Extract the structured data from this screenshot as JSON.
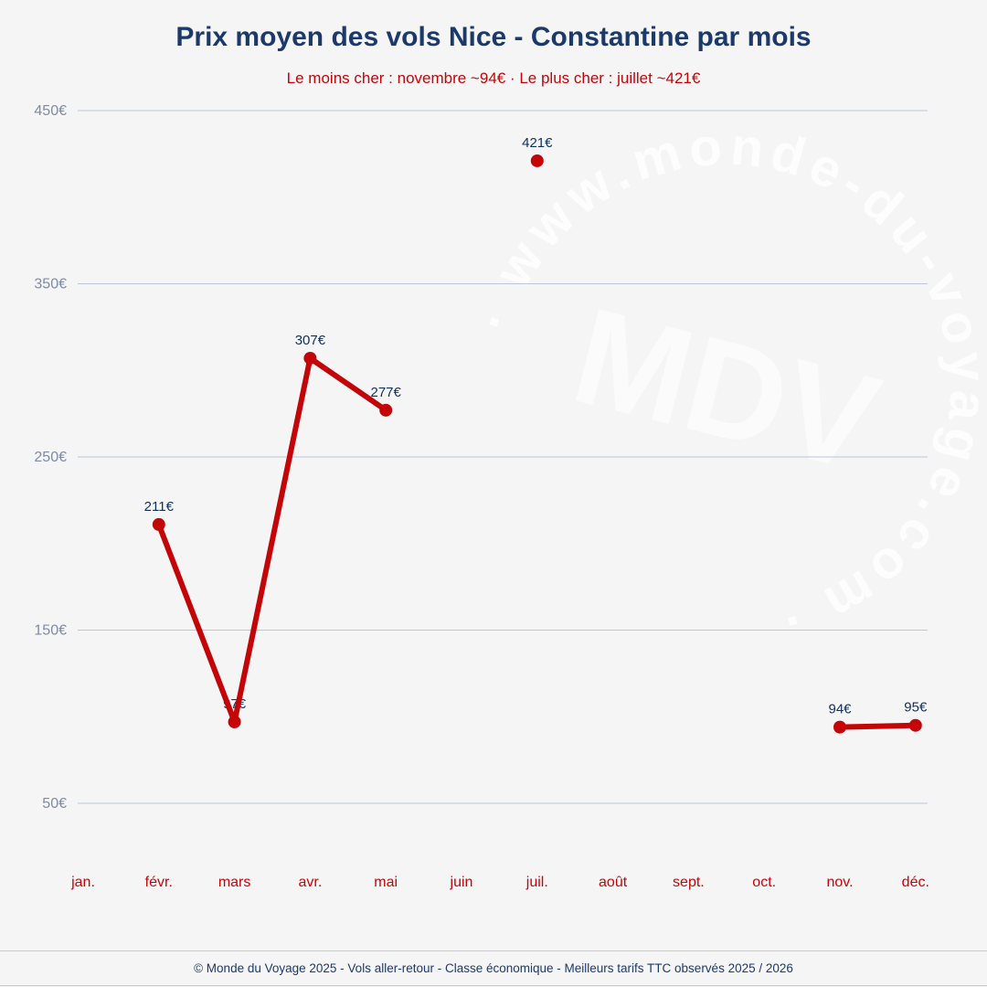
{
  "page": {
    "title": "Prix moyen des vols Nice - Constantine par mois",
    "subtitle": "Le moins cher : novembre ~94€ · Le plus cher : juillet ~421€",
    "footer": "© Monde du Voyage 2025 - Vols aller-retour - Classe économique - Meilleurs tarifs TTC observés 2025 / 2026"
  },
  "watermark": {
    "ring_text": "· www.monde-du-voyage.com ·",
    "center_text": "MDV"
  },
  "colors": {
    "background": "#f5f5f5",
    "title": "#1b3a6b",
    "red": "#c40508",
    "tick_label": "#7e8ba3",
    "gridline": "#bcc6d8",
    "point_label": "#122f57",
    "footer_text": "#1b3a6b",
    "footer_rule": "#c9c9c9",
    "watermark": "#ffffff"
  },
  "chart_data": {
    "type": "line",
    "title": "Prix moyen des vols Nice - Constantine par mois",
    "subtitle": "Le moins cher : novembre ~94€ · Le plus cher : juillet ~421€",
    "unit": "€",
    "categories": [
      "jan.",
      "févr.",
      "mars",
      "avr.",
      "mai",
      "juin",
      "juil.",
      "août",
      "sept.",
      "oct.",
      "nov.",
      "déc."
    ],
    "values": [
      null,
      211,
      97,
      307,
      277,
      null,
      421,
      null,
      null,
      null,
      94,
      95
    ],
    "point_labels": [
      null,
      "211€",
      "97€",
      "307€",
      "277€",
      null,
      "421€",
      null,
      null,
      null,
      "94€",
      "95€"
    ],
    "yticks": [
      450,
      350,
      250,
      150,
      50
    ],
    "ytick_labels": [
      "450€",
      "350€",
      "250€",
      "150€",
      "50€"
    ],
    "ylim": [
      50,
      450
    ],
    "grid": true,
    "legend": false,
    "min_month": "novembre",
    "min_value": 94,
    "max_month": "juillet",
    "max_value": 421
  }
}
